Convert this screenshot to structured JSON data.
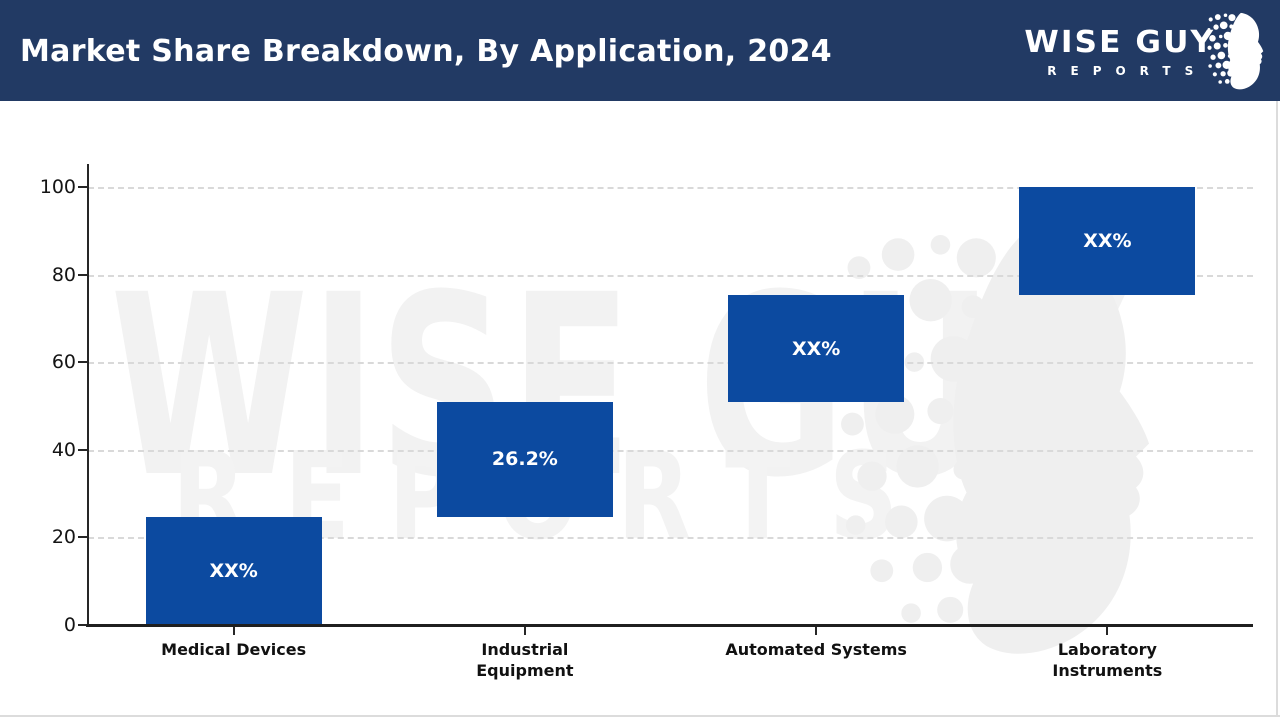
{
  "header": {
    "title": "Market Share Breakdown, By Application, 2024",
    "brand_line1": "WISE GUY",
    "brand_line2": "REPORTS",
    "bg_color": "#223A64",
    "text_color": "#ffffff"
  },
  "watermark": {
    "line1": "WISE GUY",
    "line2": "REPORTS",
    "color": "#f2f2f2"
  },
  "chart_data": {
    "type": "bar",
    "variant": "floating-segment-waterfall",
    "title": "Market Share Breakdown, By Application, 2024",
    "xlabel": "",
    "ylabel": "",
    "ylim": [
      0,
      100
    ],
    "yticks": [
      0,
      20,
      40,
      60,
      80,
      100
    ],
    "grid": {
      "horizontal": true,
      "style": "dashed",
      "color": "#d9d9d9"
    },
    "legend": null,
    "categories": [
      "Medical Devices",
      "Industrial Equipment",
      "Automated Systems",
      "Laboratory Instruments"
    ],
    "category_label_lines": [
      [
        "Medical Devices"
      ],
      [
        "Industrial",
        "Equipment"
      ],
      [
        "Automated Systems"
      ],
      [
        "Laboratory",
        "Instruments"
      ]
    ],
    "bars": [
      {
        "category": "Medical Devices",
        "start": 0,
        "end": 24.7,
        "label": "XX%"
      },
      {
        "category": "Industrial Equipment",
        "start": 24.7,
        "end": 50.9,
        "label": "26.2%"
      },
      {
        "category": "Automated Systems",
        "start": 50.9,
        "end": 75.3,
        "label": "XX%"
      },
      {
        "category": "Laboratory Instruments",
        "start": 75.3,
        "end": 100,
        "label": "XX%"
      }
    ],
    "colors": {
      "bar": "#0C4AA0",
      "bar_label": "#ffffff",
      "axis": "#262626",
      "tick_label": "#141414",
      "gridline": "#d9d9d9"
    }
  }
}
